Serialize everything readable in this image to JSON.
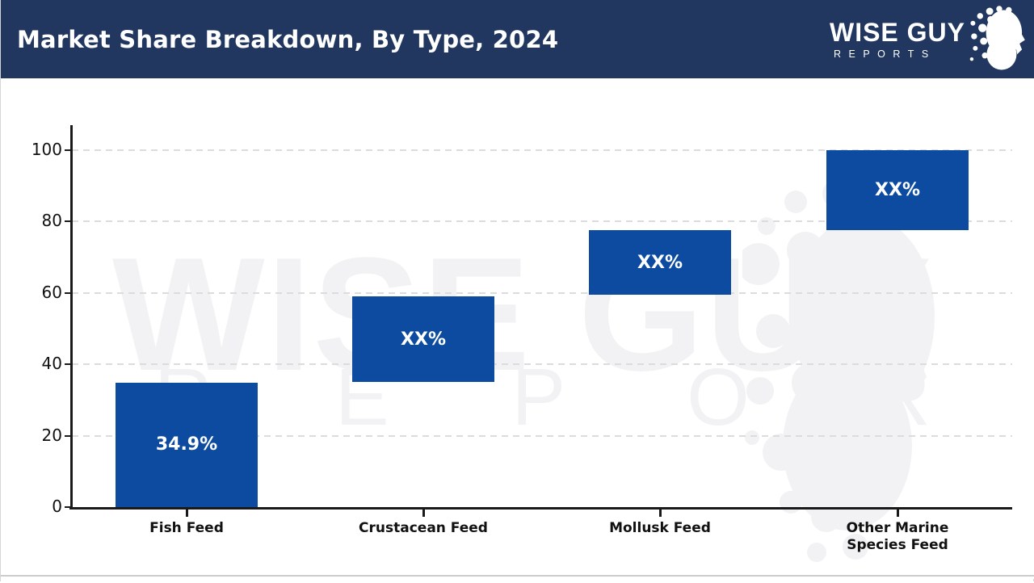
{
  "header": {
    "title": "Market Share Breakdown, By Type, 2024",
    "logo": {
      "line1": "WISE GUY",
      "line2": "REPORTS"
    }
  },
  "watermark": {
    "line1": "WISE GUY",
    "line2": "R E P O R T S"
  },
  "colors": {
    "header_bg": "#213760",
    "bar_fill": "#0c4ba0",
    "bar_label": "#ffffff",
    "axis": "#1a1a1a",
    "gridline": "#dcdcdc",
    "watermark": "#f2f2f4"
  },
  "chart_data": {
    "type": "bar",
    "subtype": "waterfall",
    "title": "Market Share Breakdown, By Type, 2024",
    "xlabel": "",
    "ylabel": "",
    "categories": [
      "Fish Feed",
      "Crustacean Feed",
      "Mollusk Feed",
      "Other Marine Species Feed"
    ],
    "category_display": [
      "Fish Feed",
      "Crustacean Feed",
      "Mollusk Feed",
      "Other Marine\nSpecies Feed"
    ],
    "series": [
      {
        "name": "Market Share (%)",
        "segments": [
          {
            "category": "Fish Feed",
            "start": 0,
            "end": 34.9,
            "label": "34.9%"
          },
          {
            "category": "Crustacean Feed",
            "start": 35,
            "end": 59,
            "label": "XX%"
          },
          {
            "category": "Mollusk Feed",
            "start": 59.5,
            "end": 77.5,
            "label": "XX%"
          },
          {
            "category": "Other Marine Species Feed",
            "start": 77.5,
            "end": 100,
            "label": "XX%"
          }
        ]
      }
    ],
    "yticks": [
      0,
      20,
      40,
      60,
      80,
      100
    ],
    "ylim": [
      0,
      107
    ],
    "grid": "dashed-horizontal",
    "legend": "none"
  }
}
